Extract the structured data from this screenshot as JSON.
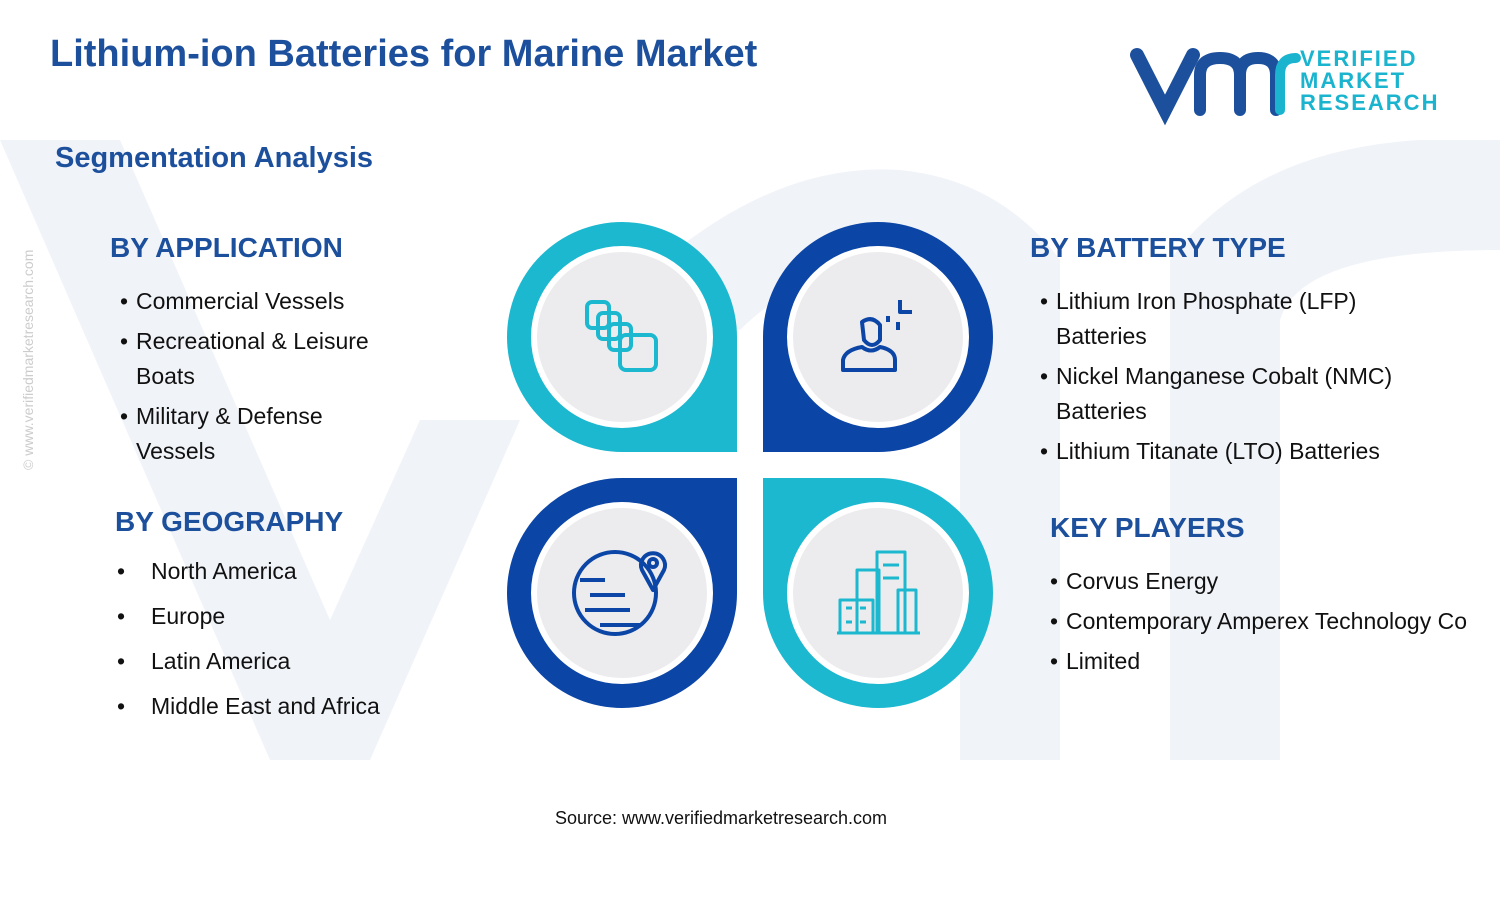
{
  "header": {
    "title": "Lithium-ion Batteries for Marine Market",
    "subtitle": "Segmentation Analysis"
  },
  "logo": {
    "lines": [
      "VERIFIED",
      "MARKET",
      "RESEARCH"
    ]
  },
  "watermark": "© www.verifiedmarketresearch.com",
  "sections": [
    {
      "heading": "BY APPLICATION",
      "items": [
        "Commercial Vessels",
        "Recreational & Leisure Boats",
        "Military & Defense Vessels"
      ]
    },
    {
      "heading": "BY GEOGRAPHY",
      "items": [
        "North America",
        "Europe",
        "Latin America",
        "Middle East and Africa"
      ]
    },
    {
      "heading": "BY BATTERY TYPE",
      "items": [
        "Lithium Iron Phosphate (LFP) Batteries",
        "Nickel Manganese Cobalt (NMC) Batteries",
        "Lithium Titanate (LTO) Batteries"
      ]
    },
    {
      "heading": "KEY PLAYERS",
      "items": [
        "Corvus Energy",
        "Contemporary Amperex Technology Co",
        "Limited"
      ]
    }
  ],
  "source": "Source: www.verifiedmarketresearch.com"
}
